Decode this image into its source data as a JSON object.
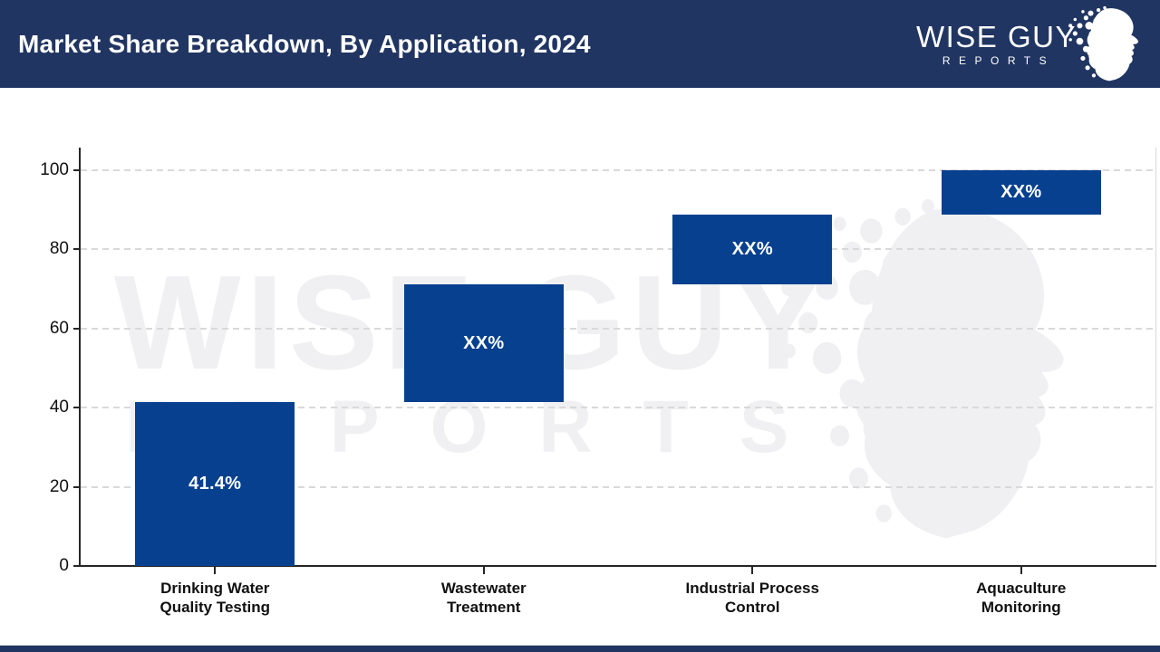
{
  "header": {
    "title": "Market Share Breakdown, By Application, 2024",
    "logo_line1": "WISE GUY",
    "logo_line2": "REPORTS"
  },
  "watermark": {
    "line1": "WISE GUY",
    "line2": "REPORTS"
  },
  "chart_data": {
    "type": "bar",
    "subtype": "floating-waterfall",
    "title": "Market Share Breakdown, By Application, 2024",
    "xlabel": "",
    "ylabel": "",
    "categories": [
      [
        "Drinking Water",
        "Quality Testing"
      ],
      [
        "Wastewater",
        "Treatment"
      ],
      [
        "Industrial Process",
        "Control"
      ],
      [
        "Aquaculture",
        "Monitoring"
      ]
    ],
    "segments": [
      {
        "start": 0,
        "end": 41.4,
        "label": "41.4%"
      },
      {
        "start": 41.4,
        "end": 71.0,
        "label": "XX%"
      },
      {
        "start": 71.0,
        "end": 88.8,
        "label": "XX%"
      },
      {
        "start": 88.8,
        "end": 100,
        "label": "XX%"
      }
    ],
    "y_ticks": [
      0,
      20,
      40,
      60,
      80,
      100
    ],
    "ylim": [
      0,
      105.6
    ],
    "grid": "horizontal-dashed",
    "legend": "none",
    "bar_color": "#06408F",
    "bar_label_color": "#ffffff"
  },
  "colors": {
    "header_bg": "#203562",
    "footer_bg": "#203562",
    "bar": "#06408F",
    "grid": "#d9d9d9",
    "axis": "#262626",
    "watermark": "#f0f0f2"
  }
}
